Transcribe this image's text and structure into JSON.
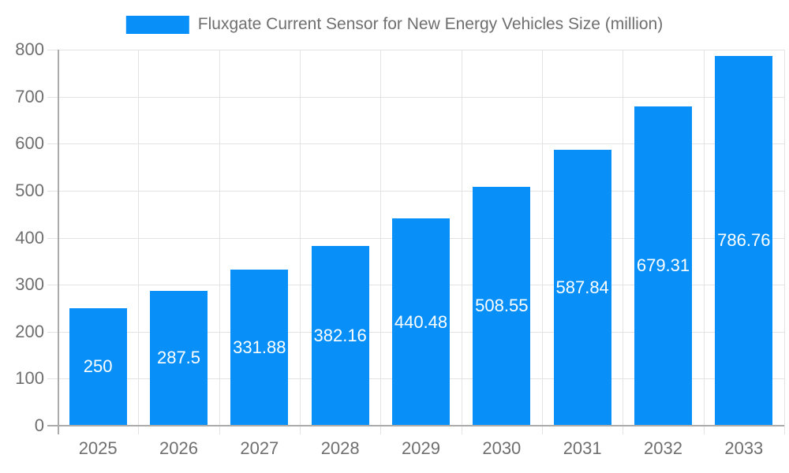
{
  "chart_data": {
    "type": "bar",
    "title": "Fluxgate Current Sensor for New Energy Vehicles Size (million)",
    "categories": [
      "2025",
      "2026",
      "2027",
      "2028",
      "2029",
      "2030",
      "2031",
      "2032",
      "2033"
    ],
    "values": [
      250,
      287.5,
      331.88,
      382.16,
      440.48,
      508.55,
      587.84,
      679.31,
      786.76
    ],
    "bar_labels": [
      "250",
      "287.5",
      "331.88",
      "382.16",
      "440.48",
      "508.55",
      "587.84",
      "679.31",
      "786.76"
    ],
    "xlabel": "",
    "ylabel": "",
    "ylim": [
      0,
      800
    ],
    "y_ticks": [
      0,
      100,
      200,
      300,
      400,
      500,
      600,
      700,
      800
    ],
    "legend_position": "top",
    "grid": true,
    "value_labels_inside_bars": true,
    "colors": {
      "bar": "#0890f8",
      "bar_label_text": "#ffffff",
      "axis_text": "#6f6f6f",
      "grid_line": "#e3e3e3",
      "axis_line": "#ababab",
      "background": "#ffffff"
    }
  }
}
